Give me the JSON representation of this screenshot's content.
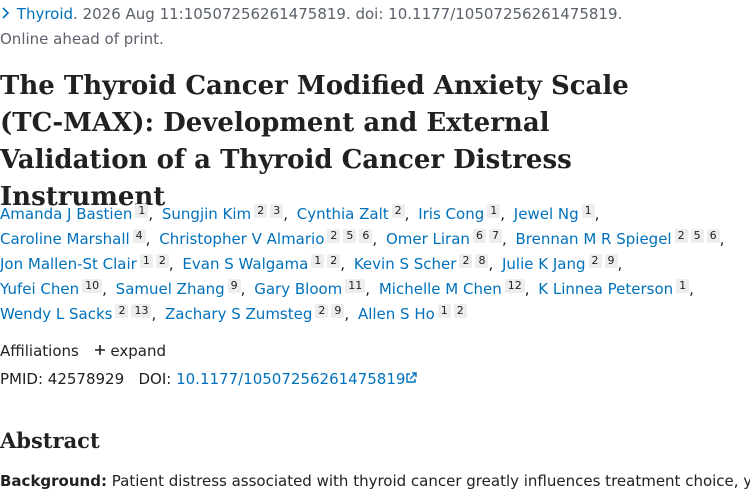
{
  "citation": {
    "journal": "Thyroid",
    "details": ". 2026 Aug 11:10507256261475819. doi: 10.1177/10507256261475819."
  },
  "status": "Online ahead of print.",
  "title": "The Thyroid Cancer Modified Anxiety Scale (TC-MAX): Development and External Validation of a Thyroid Cancer Distress Instrument",
  "authors": [
    {
      "name": "Amanda J Bastien",
      "affiliations": [
        1
      ],
      "separator": ","
    },
    {
      "name": "Sungjin Kim",
      "affiliations": [
        2,
        3
      ],
      "separator": ","
    },
    {
      "name": "Cynthia Zalt",
      "affiliations": [
        2
      ],
      "separator": ","
    },
    {
      "name": "Iris Cong",
      "affiliations": [
        1
      ],
      "separator": ","
    },
    {
      "name": "Jewel Ng",
      "affiliations": [
        1
      ],
      "separator": ","
    },
    {
      "name": "Caroline Marshall",
      "affiliations": [
        4
      ],
      "separator": ","
    },
    {
      "name": "Christopher V Almario",
      "affiliations": [
        2,
        5,
        6
      ],
      "separator": ","
    },
    {
      "name": "Omer Liran",
      "affiliations": [
        6,
        7
      ],
      "separator": ","
    },
    {
      "name": "Brennan M R Spiegel",
      "affiliations": [
        2,
        5,
        6
      ],
      "separator": ","
    },
    {
      "name": "Jon Mallen-St Clair",
      "affiliations": [
        1,
        2
      ],
      "separator": ","
    },
    {
      "name": "Evan S Walgama",
      "affiliations": [
        1,
        2
      ],
      "separator": ","
    },
    {
      "name": "Kevin S Scher",
      "affiliations": [
        2,
        8
      ],
      "separator": ","
    },
    {
      "name": "Julie K Jang",
      "affiliations": [
        2,
        9
      ],
      "separator": ","
    },
    {
      "name": "Yufei Chen",
      "affiliations": [
        10
      ],
      "separator": ","
    },
    {
      "name": "Samuel Zhang",
      "affiliations": [
        9
      ],
      "separator": ","
    },
    {
      "name": "Gary Bloom",
      "affiliations": [
        11
      ],
      "separator": ","
    },
    {
      "name": "Michelle M Chen",
      "affiliations": [
        12
      ],
      "separator": ","
    },
    {
      "name": "K Linnea Peterson",
      "affiliations": [
        1
      ],
      "separator": ","
    },
    {
      "name": "Wendy L Sacks",
      "affiliations": [
        2,
        13
      ],
      "separator": ","
    },
    {
      "name": "Zachary S Zumsteg",
      "affiliations": [
        2,
        9
      ],
      "separator": ","
    },
    {
      "name": "Allen S Ho",
      "affiliations": [
        1,
        2
      ]
    }
  ],
  "affiliations": {
    "label": "Affiliations",
    "toggle": "expand"
  },
  "identifiers": {
    "pmid_label": "PMID:",
    "pmid": "42578929",
    "doi_label": "DOI:",
    "doi": "10.1177/10507256261475819"
  },
  "abstract": {
    "heading": "Abstract",
    "background_label": "Background:",
    "background_text": "Patient distress associated with thyroid cancer greatly influences treatment choice, yet is"
  }
}
